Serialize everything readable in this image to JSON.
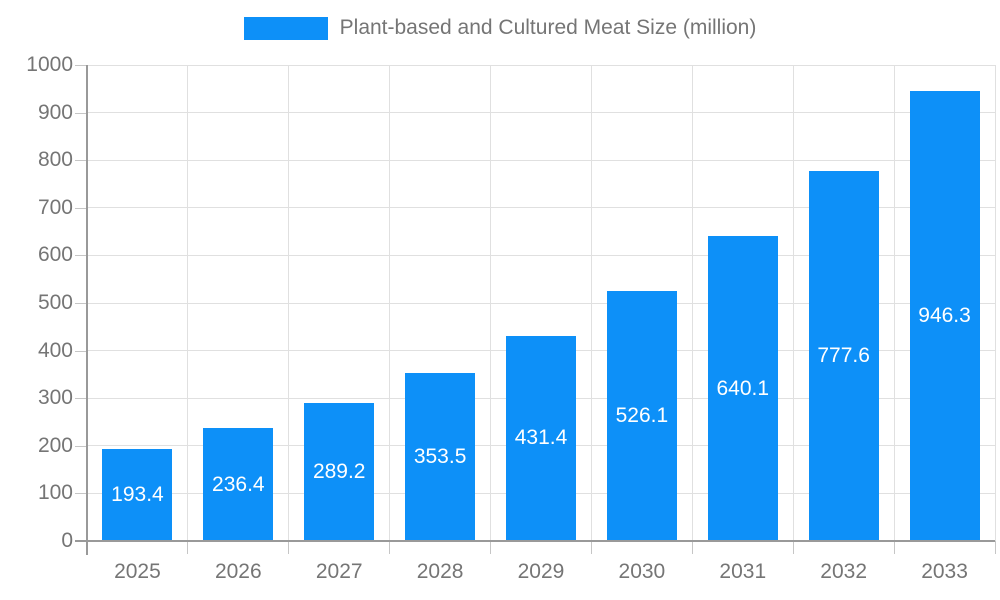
{
  "chart_data": {
    "type": "bar",
    "title": "Plant-based and Cultured Meat Size (million)",
    "categories": [
      "2025",
      "2026",
      "2027",
      "2028",
      "2029",
      "2030",
      "2031",
      "2032",
      "2033"
    ],
    "values": [
      193.4,
      236.4,
      289.2,
      353.5,
      431.4,
      526.1,
      640.1,
      777.6,
      946.3
    ],
    "value_labels": [
      "193.4",
      "236.4",
      "289.2",
      "353.5",
      "431.4",
      "526.1",
      "640.1",
      "777.6",
      "946.3"
    ],
    "xlabel": "",
    "ylabel": "",
    "ylim": [
      0,
      1000
    ],
    "ytick_step": 100,
    "grid": "on",
    "legend_position": "top-center",
    "colors": {
      "bar": "#0d90f8",
      "axis_line": "#999999",
      "gridline": "#e0e0e0",
      "tick": "#c6c6c6",
      "axis_text": "#757575",
      "value_text": "#ffffff",
      "background": "#ffffff"
    }
  }
}
